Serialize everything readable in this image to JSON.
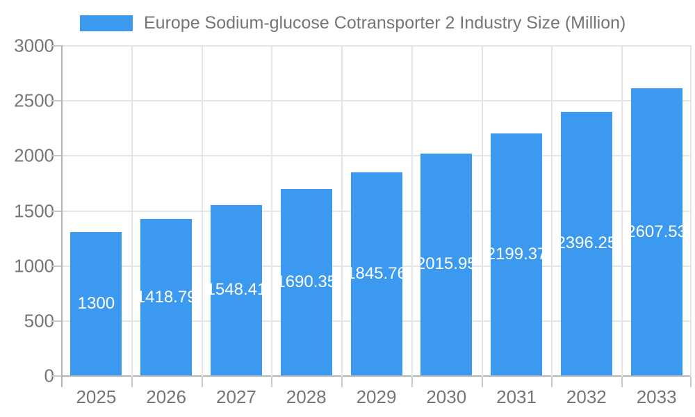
{
  "legend": {
    "swatch_color": "#3b99f0"
  },
  "chart_data": {
    "type": "bar",
    "title": "Europe Sodium-glucose Cotransporter 2 Industry Size (Million)",
    "categories": [
      "2025",
      "2026",
      "2027",
      "2028",
      "2029",
      "2030",
      "2031",
      "2032",
      "2033"
    ],
    "values": [
      1300,
      1418.79,
      1548.41,
      1690.35,
      1845.76,
      2015.95,
      2199.37,
      2396.25,
      2607.53
    ],
    "bar_labels": [
      "1300",
      "1418.79",
      "1548.41",
      "1690.35",
      "1845.76",
      "2015.95",
      "2199.37",
      "2396.25",
      "2607.53"
    ],
    "xlabel": "",
    "ylabel": "",
    "ylim": [
      0,
      3000
    ],
    "yticks": [
      0,
      500,
      1000,
      1500,
      2000,
      2500,
      3000
    ],
    "grid": true,
    "legend_position": "top",
    "colors": {
      "bar": "#3b99f0",
      "grid": "#e6e6e6",
      "axis": "#b5b5b5",
      "tick": "#c9c9c9",
      "axis_text": "#757575",
      "bar_label_text": "#ffffff",
      "background": "#ffffff"
    }
  }
}
